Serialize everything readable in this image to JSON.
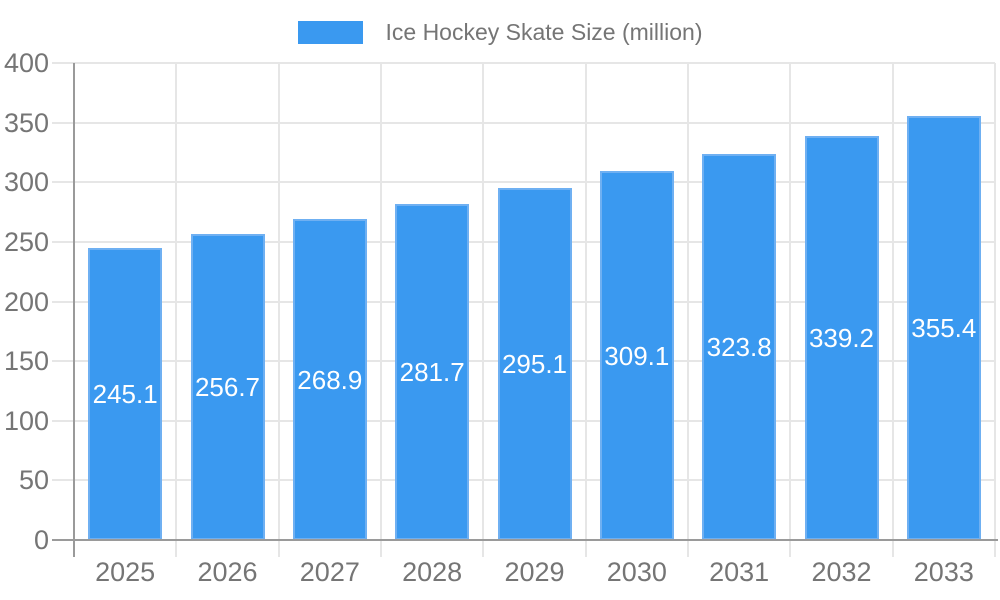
{
  "legend": {
    "label": "Ice Hockey Skate Size (million)"
  },
  "style": {
    "bar_color": "#3a99f0",
    "bar_border_color": "#6fb0f2",
    "grid_color": "#e6e6e6",
    "axis_color": "#9a9a9a",
    "tick_text_color": "#757575",
    "value_label_color": "#ffffff",
    "background_color": "#ffffff"
  },
  "chart_data": {
    "type": "bar",
    "title": "Ice Hockey Skate Size (million)",
    "categories": [
      "2025",
      "2026",
      "2027",
      "2028",
      "2029",
      "2030",
      "2031",
      "2032",
      "2033"
    ],
    "series": [
      {
        "name": "Ice Hockey Skate Size (million)",
        "values": [
          245.1,
          256.7,
          268.9,
          281.7,
          295.1,
          309.1,
          323.8,
          339.2,
          355.4
        ]
      }
    ],
    "xlabel": "",
    "ylabel": "",
    "ylim": [
      0,
      400
    ],
    "ytick_step": 50,
    "yticks": [
      0,
      50,
      100,
      150,
      200,
      250,
      300,
      350,
      400
    ],
    "grid": true,
    "legend_position": "top",
    "value_label_position": "inside-center",
    "value_label_decimals": 1
  }
}
